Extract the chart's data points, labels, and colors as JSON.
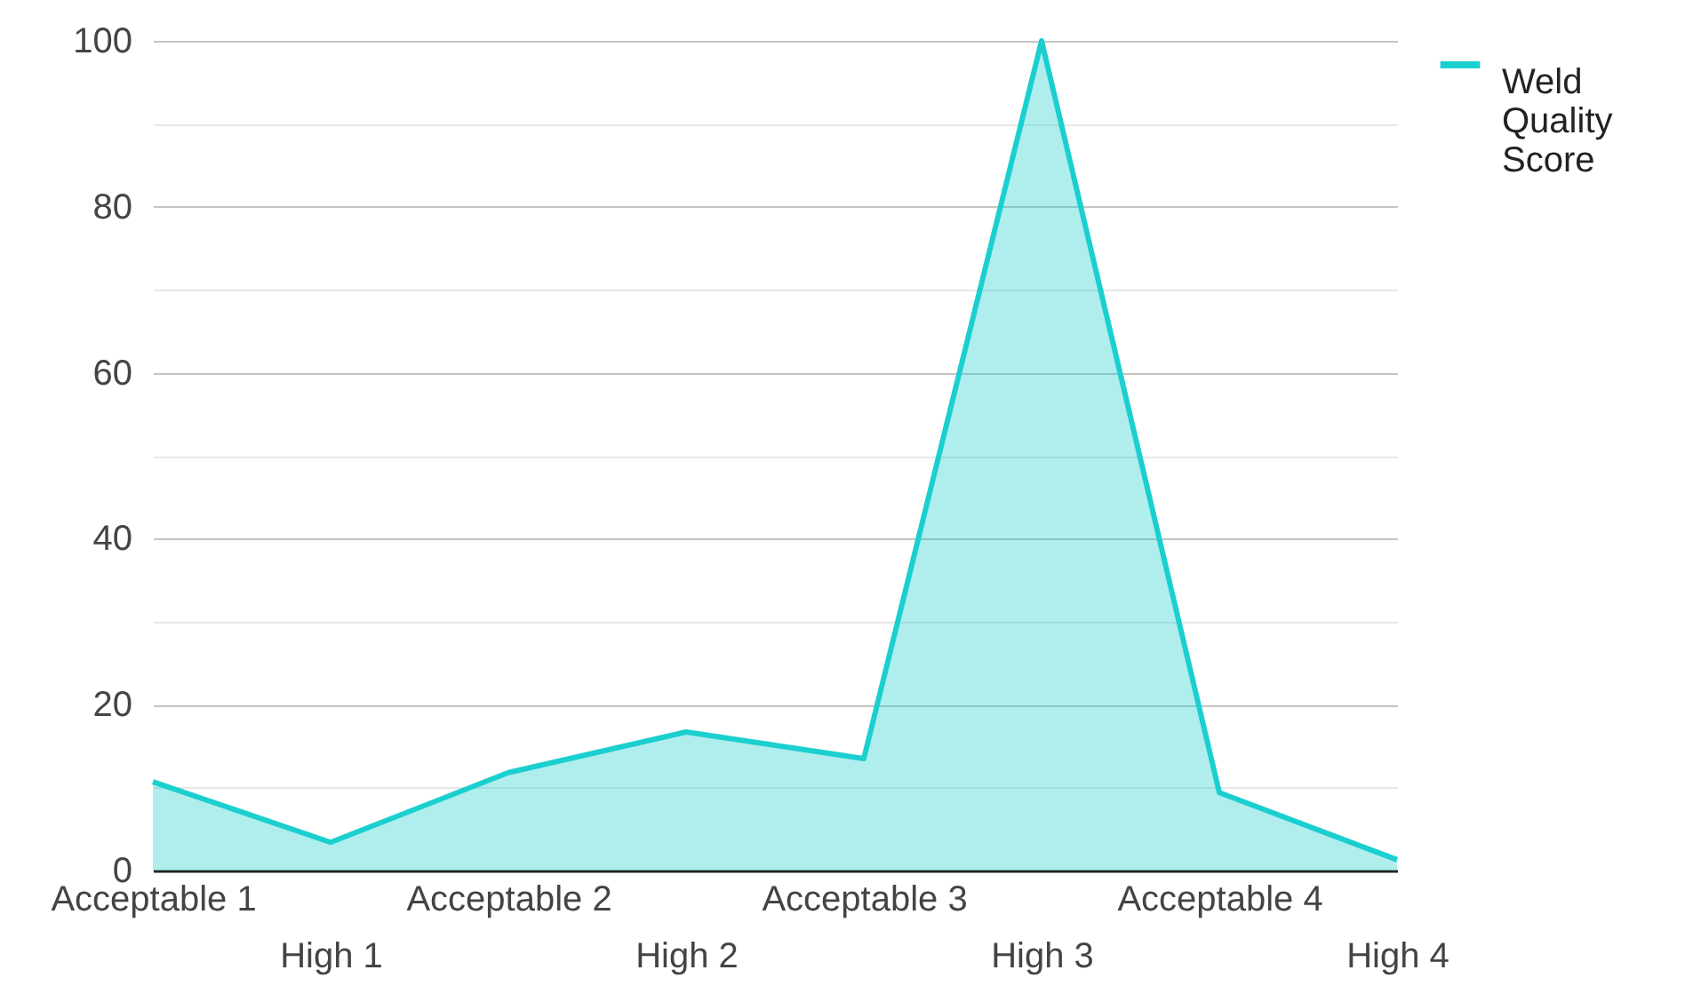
{
  "chart_data": {
    "type": "area",
    "categories": [
      "Acceptable 1",
      "High 1",
      "Acceptable 2",
      "High 2",
      "Acceptable 3",
      "High 3",
      "Acceptable 4",
      "High 4"
    ],
    "series": [
      {
        "name": "Weld Quality Score",
        "color": "#1ccfcf",
        "values": [
          10.7,
          3.4,
          11.8,
          16.7,
          13.5,
          100,
          9.4,
          1.3
        ]
      }
    ],
    "ylim": [
      0,
      100
    ],
    "yticks": [
      0,
      {
        "value": 10,
        "label": null
      },
      20,
      {
        "value": 30,
        "label": null
      },
      40,
      {
        "value": 50,
        "label": null
      },
      60,
      {
        "value": 70,
        "label": null
      },
      80,
      {
        "value": 90,
        "label": null
      },
      100
    ],
    "grid": "y",
    "legend": "top right"
  }
}
